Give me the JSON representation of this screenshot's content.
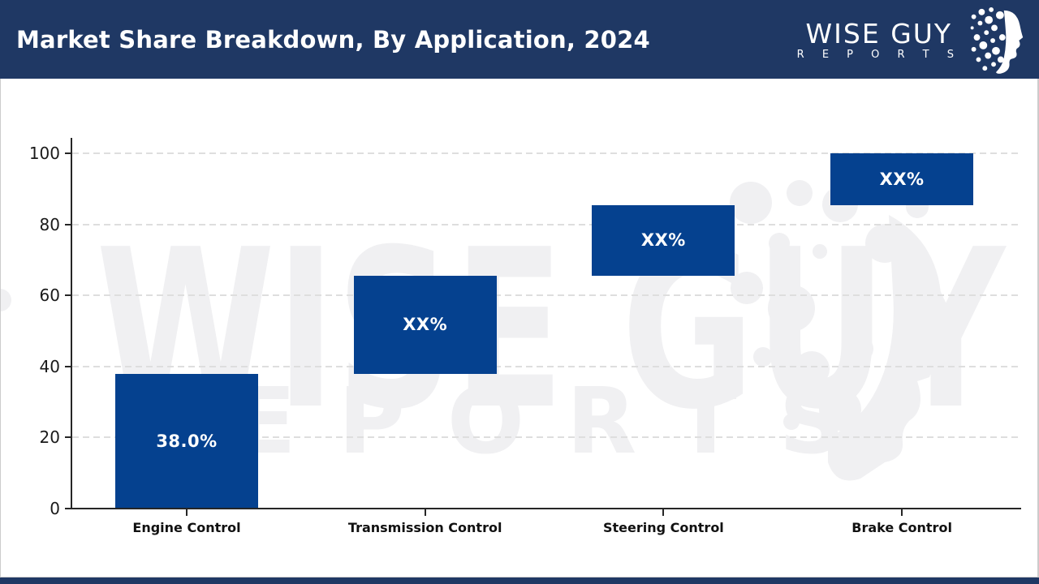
{
  "header": {
    "title": "Market Share Breakdown, By Application, 2024",
    "background": "#1f3864",
    "logo": {
      "line1": "WISE GUY",
      "line2": "R E P O R T S"
    }
  },
  "watermark": {
    "line1": "WISE GUY",
    "line2": "REPORTS"
  },
  "footer": {
    "background": "#1f3864"
  },
  "colors": {
    "bar": "#05418f",
    "header_navy": "#1f3864",
    "gridline": "#dedede",
    "watermark": "#f0f0f2",
    "axis": "#262626"
  },
  "chart_data": {
    "type": "bar",
    "subtype": "waterfall",
    "title": "Market Share Breakdown, By Application, 2024",
    "categories": [
      "Engine Control",
      "Transmission Control",
      "Steering Control",
      "Brake Control"
    ],
    "segments": [
      {
        "category": "Engine Control",
        "start": 0,
        "end": 38,
        "label": "38.0%"
      },
      {
        "category": "Transmission Control",
        "start": 38,
        "end": 65.5,
        "label": "XX%"
      },
      {
        "category": "Steering Control",
        "start": 65.5,
        "end": 85.5,
        "label": "XX%"
      },
      {
        "category": "Brake Control",
        "start": 85.5,
        "end": 100,
        "label": "XX%"
      }
    ],
    "xlabel": "",
    "ylabel": "",
    "ylim": [
      0,
      100
    ],
    "y_ticks": [
      0,
      20,
      40,
      60,
      80,
      100
    ],
    "grid": "dashed horizontal",
    "legend": "none",
    "bar_color": "#05418f",
    "value_label_color": "#ffffff"
  }
}
